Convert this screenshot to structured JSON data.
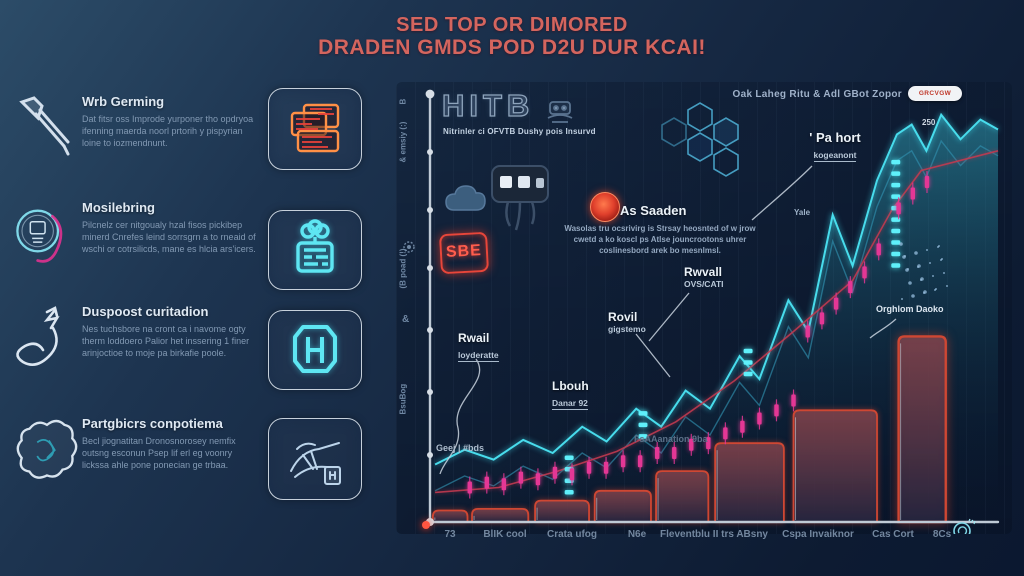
{
  "title": {
    "line1": "SED TOP OR DIMORED",
    "line2": "DRADEN GMDS POD D2U DUR KCAI!"
  },
  "features": [
    {
      "icon": "screwdriver-icon",
      "heading": "Wrb Germing",
      "body": "Dat fitsr oss Improde yurponer tho opdryoa ifenning maerda noorl prtorih y pispyrian loine to iozmendnunt."
    },
    {
      "icon": "badge-swirl-icon",
      "heading": "Mosilebring",
      "body": "Pilcnelz cer nitgoualy hzal fisos pickibep minerd Cnrefes leind sorrsgrn a to rneaid of wschi or cotrsilicds, mane es hlcia ars'icers."
    },
    {
      "icon": "snake-icon",
      "heading": "Duspoost curitadion",
      "body": "Nes tuchsbore na cront ca i navome ogty therm loddoero Palior het inssering 1 finer arinjoctioe to moje pa birkafie poole."
    },
    {
      "icon": "brain-cloud-icon",
      "heading": "Partgbicrs conpotiema",
      "body": "Becl jiognatitan Dronosnorosey nemfix outsng esconun Psep lif erl eg voonry lickssa ahle pone ponecian ge trbaa."
    }
  ],
  "icon_boxes": [
    "documents-icon",
    "keyboard-clover-icon",
    "h-badge-icon",
    "machine-sketch-icon"
  ],
  "chart": {
    "logo": "HITB",
    "logo_subtitle": "Nitrinler ci OFVTB Dushy pois Insurvd",
    "header_right": "Oak Laheg Ritu & Adl GBot Zopor",
    "badge": "GRCVGW",
    "annotations": {
      "report_title": "' Pa hort",
      "report_sub": "kogeanont",
      "yale": "Yale",
      "peak_value": "250",
      "as_saaden_title": "As Saaden",
      "as_saaden_body": "Wasolas tru ocsrivirg is Strsay heosnted of w jrow cwetd a ko koscl ps Atlse jouncrootons uhrer coslinesbord arek bo mesnlmsl.",
      "sbe_sign": "SBE",
      "revall_title": "Rwvall",
      "revall_sub": "OVS/CATI",
      "rwail_title": "Rwail",
      "rwail_sub": "loyderatte",
      "rovil_title": "Rovil",
      "rovil_sub": "gigstemo",
      "lbouh_title": "Lbouh",
      "lbouh_sub": "Danar 92",
      "geej": "Geej | #bds",
      "trend": "FsAAanation 9ba",
      "orghlom": "Orghlom Daoko"
    },
    "y_axis_labels": [
      "B",
      "& emsiy (:)",
      "(B poad (!)",
      "BsuBog"
    ],
    "colors": {
      "cyan": "#48dcec",
      "pink": "#e43795",
      "red_line": "#c43a50",
      "bar_stroke": "#cf4733",
      "accent_title": "#d4655e"
    }
  },
  "chart_data": {
    "type": "mixed",
    "title": "Oak Laheg Ritu & Adl GBot Zopor",
    "x_categories": [
      "73",
      "BlIK cool",
      "Crata ufog",
      "N6e",
      "Fleventblu II trs ABsny",
      "Cspa Invaiknor",
      "Cas Cort",
      "8Cs"
    ],
    "ylim": [
      0,
      260
    ],
    "grid": "vertical-faint",
    "legend": "none",
    "peak_label": 250,
    "bars": {
      "x_pct": [
        0.5,
        7.4,
        18.5,
        29,
        39.8,
        50.2,
        64,
        82.5
      ],
      "w_pct": [
        6.1,
        9.9,
        9.5,
        9.9,
        9.2,
        12.1,
        14.7,
        8.3
      ],
      "values": [
        7,
        8,
        13,
        19,
        31,
        48,
        68,
        113
      ]
    },
    "line_cyan": {
      "x_pct": [
        0.9,
        6.1,
        11.2,
        16.4,
        21.6,
        26.8,
        31.1,
        36.3,
        40.7,
        45,
        49.3,
        54.5,
        58,
        63.1,
        66.6,
        70.9,
        74.4,
        78.7,
        82.2,
        84.8,
        87.4,
        90,
        93.4,
        96.9,
        100
      ],
      "values": [
        35,
        44,
        38,
        50,
        42,
        58,
        49,
        69,
        58,
        80,
        69,
        101,
        87,
        135,
        116,
        187,
        156,
        208,
        236,
        242,
        226,
        248,
        233,
        245,
        239
      ]
    },
    "line_red": {
      "x_pct": [
        0.9,
        12.1,
        22.5,
        32.9,
        43.3,
        53.6,
        64,
        74.4,
        81.3,
        86.5,
        100
      ],
      "values": [
        18,
        21,
        31,
        43,
        61,
        86,
        116,
        147,
        190,
        214,
        226
      ]
    },
    "candles_pink": [
      [
        7,
        21
      ],
      [
        10,
        24
      ],
      [
        13,
        23
      ],
      [
        16,
        27
      ],
      [
        19,
        26
      ],
      [
        22,
        30
      ],
      [
        25,
        29
      ],
      [
        28,
        33
      ],
      [
        31,
        33
      ],
      [
        34,
        37
      ],
      [
        37,
        37
      ],
      [
        40,
        42
      ],
      [
        43,
        42
      ],
      [
        46,
        47
      ],
      [
        49,
        48
      ],
      [
        52,
        54
      ],
      [
        55,
        58
      ],
      [
        58,
        63
      ],
      [
        61,
        68
      ],
      [
        64,
        74
      ],
      [
        66.5,
        116
      ],
      [
        69,
        124
      ],
      [
        71.5,
        133
      ],
      [
        74,
        143
      ],
      [
        76.5,
        152
      ],
      [
        79,
        166
      ],
      [
        82.5,
        191
      ],
      [
        85,
        200
      ],
      [
        87.5,
        207
      ]
    ],
    "stacks_cyan": [
      [
        24.5,
        18,
        45
      ],
      [
        37.5,
        52,
        72
      ],
      [
        56,
        90,
        108
      ],
      [
        82,
        156,
        222
      ]
    ]
  }
}
